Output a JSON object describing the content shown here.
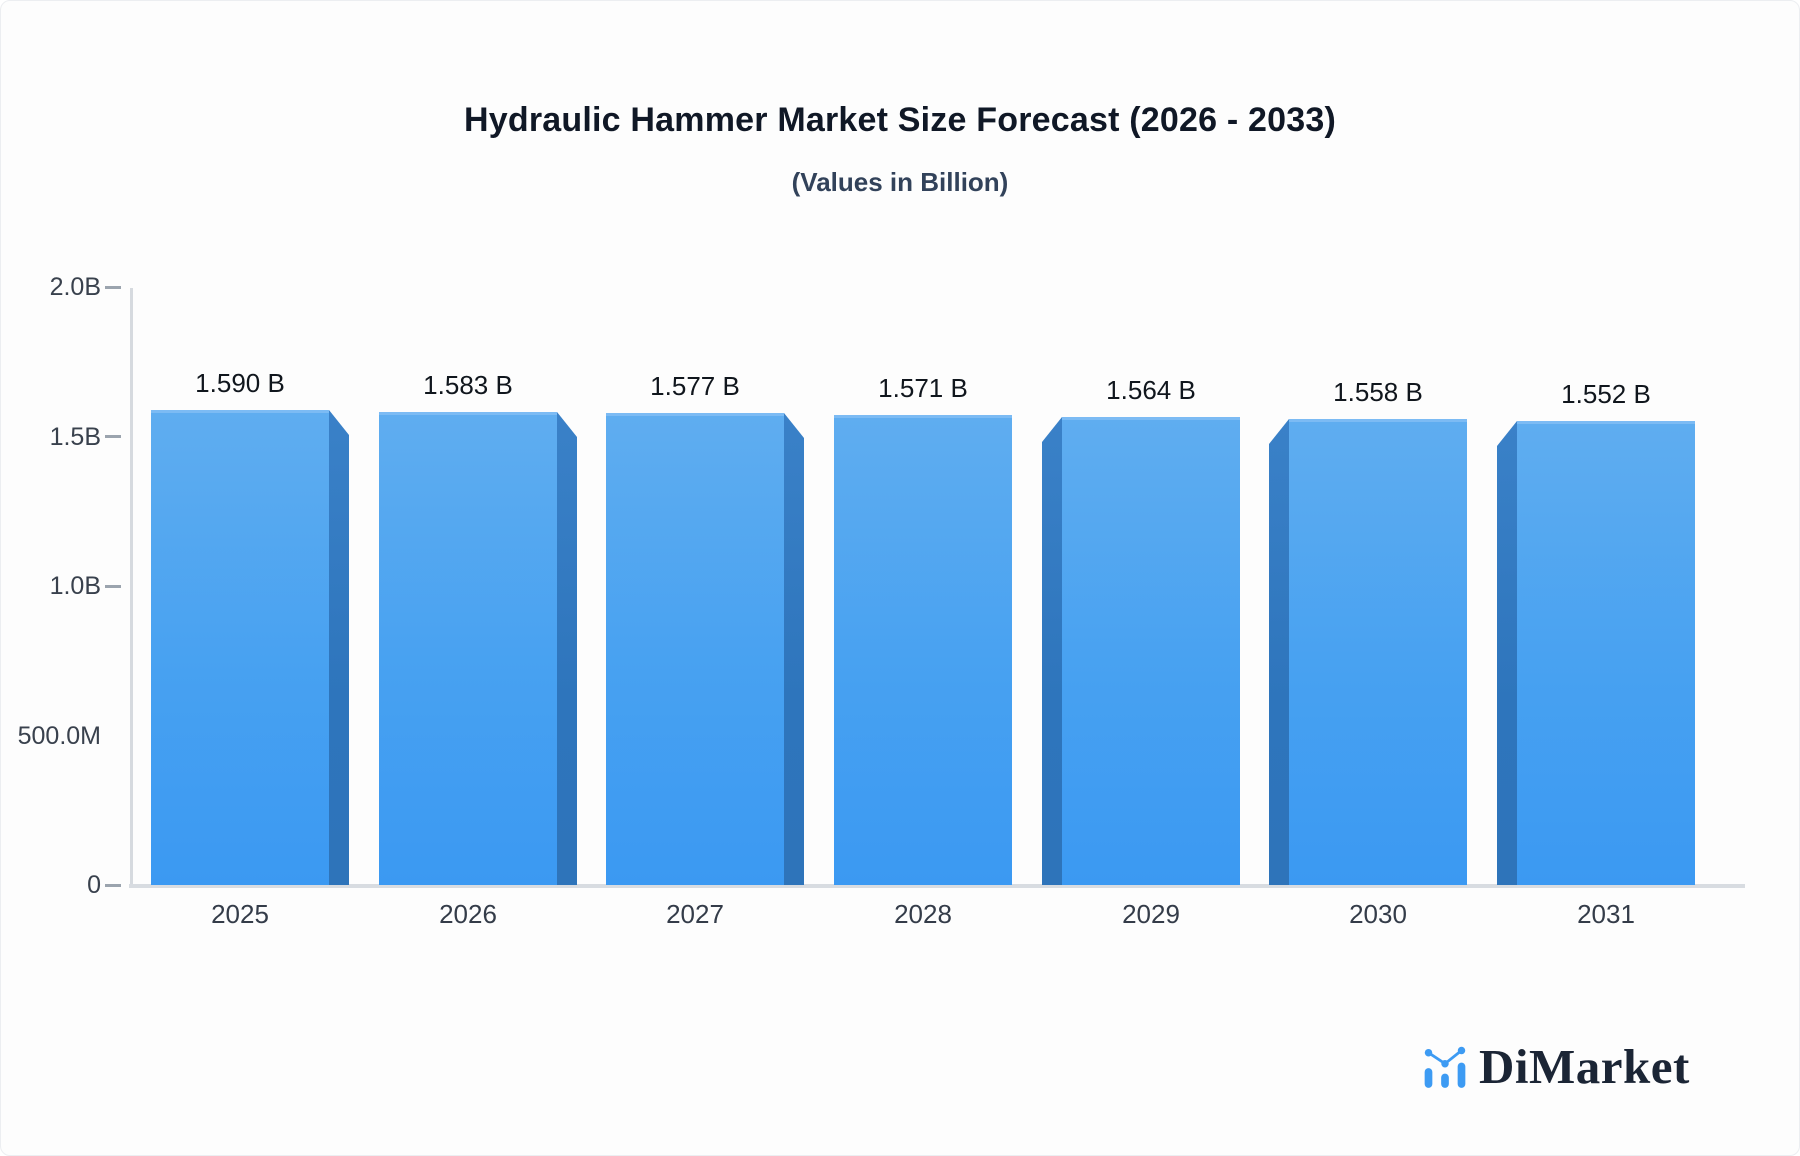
{
  "title": "Hydraulic Hammer Market Size Forecast (2026 - 2033)",
  "subtitle": "(Values in Billion)",
  "chart_data": {
    "type": "bar",
    "title": "Hydraulic Hammer Market Size Forecast (2026 - 2033)",
    "subtitle": "(Values in Billion)",
    "categories": [
      "2025",
      "2026",
      "2027",
      "2028",
      "2029",
      "2030",
      "2031"
    ],
    "values": [
      1.59,
      1.583,
      1.577,
      1.571,
      1.564,
      1.558,
      1.552
    ],
    "value_labels": [
      "1.590 B",
      "1.583 B",
      "1.577 B",
      "1.571 B",
      "1.564 B",
      "1.558 B",
      "1.552 B"
    ],
    "xlabel": "",
    "ylabel": "",
    "ylim": [
      0,
      2.0
    ],
    "y_ticks": [
      {
        "label": "2.0B",
        "value": 2.0,
        "dash": true
      },
      {
        "label": "1.5B",
        "value": 1.5,
        "dash": true
      },
      {
        "label": "1.0B",
        "value": 1.0,
        "dash": true
      },
      {
        "label": "500.0M",
        "value": 0.5,
        "dash": false
      },
      {
        "label": "0",
        "value": 0.0,
        "dash": true
      }
    ],
    "grid": false,
    "legend": "none",
    "bar_color_top": "#5fadf0",
    "bar_color_bottom": "#3b99f2",
    "bar_side_color": "#2e75bc",
    "axis_color": "#d6dadf",
    "style_3d": "center-perspective"
  },
  "watermark": {
    "brand": "DiMarket",
    "icon": "bar-line-chart-logo-icon",
    "text_color": "#1b2535",
    "icon_color": "#3d9bf3"
  }
}
